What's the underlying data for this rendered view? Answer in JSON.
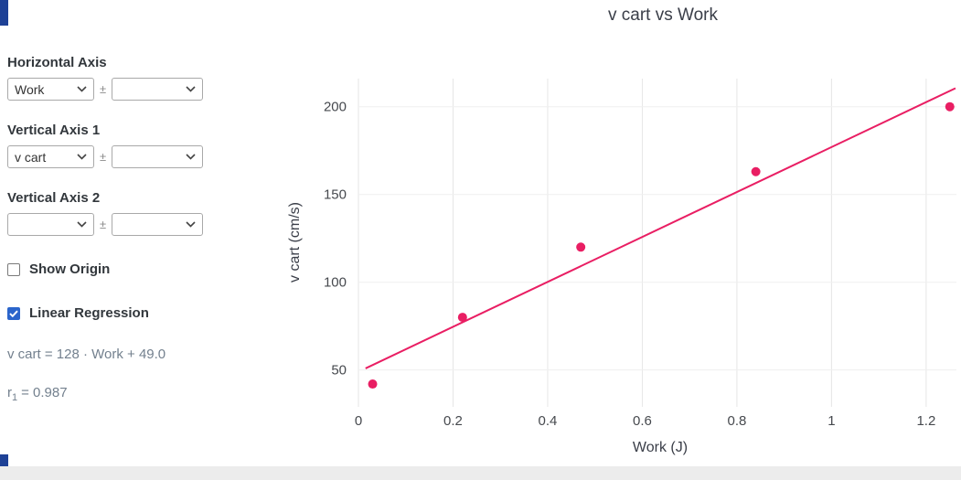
{
  "colors": {
    "accent_pink": "#E91E63",
    "checkbox_blue": "#2b65cb",
    "edge_blue": "#1e4196"
  },
  "sidebar": {
    "horizontal_axis_label": "Horizontal Axis",
    "horizontal_axis_value": "Work",
    "horizontal_axis_error_value": "",
    "vertical_axis_1_label": "Vertical Axis 1",
    "vertical_axis_1_value": "v cart",
    "vertical_axis_1_error_value": "",
    "vertical_axis_2_label": "Vertical Axis 2",
    "vertical_axis_2_value": "",
    "vertical_axis_2_error_value": "",
    "plus_minus": "±",
    "show_origin_label": "Show Origin",
    "show_origin_checked": false,
    "linear_regression_label": "Linear Regression",
    "linear_regression_checked": true,
    "fit_equation": "v cart = 128 · Work + 49.0",
    "r_base": "r",
    "r_subscript": "1",
    "r_equals_value": "= 0.987"
  },
  "chart_data": {
    "type": "scatter",
    "title": "v cart vs Work",
    "xlabel": "Work (J)",
    "ylabel": "v cart (cm/s)",
    "points": [
      {
        "x": 0.03,
        "y": 42
      },
      {
        "x": 0.22,
        "y": 80
      },
      {
        "x": 0.47,
        "y": 120
      },
      {
        "x": 0.84,
        "y": 163
      },
      {
        "x": 1.25,
        "y": 200
      }
    ],
    "fit": {
      "type": "linear",
      "equation": "v cart = 128 · Work + 49.0",
      "slope": 128,
      "intercept": 49.0,
      "r1": 0.987,
      "x_start": 0.015,
      "x_end": 1.262
    },
    "xticks": [
      0,
      0.2,
      0.4,
      0.6,
      0.8,
      1,
      1.2
    ],
    "yticks": [
      50,
      100,
      150,
      200
    ],
    "xlim": [
      0,
      1.264
    ],
    "ylim": [
      29,
      216
    ],
    "grid": true,
    "legend": false,
    "point_color": "#E91E63",
    "line_color": "#E91E63"
  }
}
